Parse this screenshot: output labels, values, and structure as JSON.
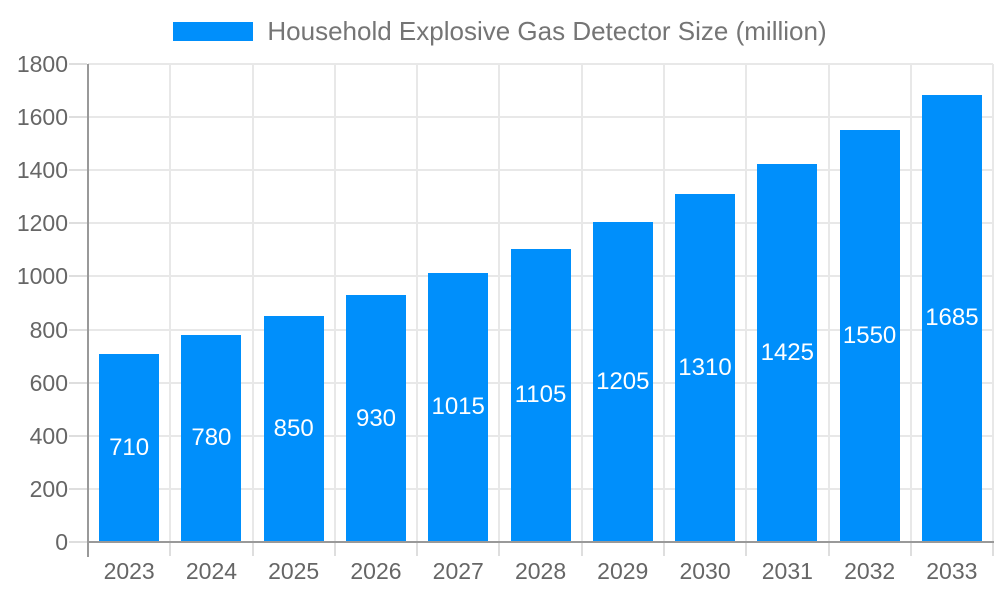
{
  "chart_data": {
    "type": "bar",
    "title": "Household Explosive Gas Detector Size (million)",
    "categories": [
      "2023",
      "2024",
      "2025",
      "2026",
      "2027",
      "2028",
      "2029",
      "2030",
      "2031",
      "2032",
      "2033"
    ],
    "series": [
      {
        "name": "Household Explosive Gas Detector Size (million)",
        "values": [
          710,
          780,
          850,
          930,
          1015,
          1105,
          1205,
          1310,
          1425,
          1550,
          1685
        ]
      }
    ],
    "xlabel": "",
    "ylabel": "",
    "ylim": [
      0,
      1800
    ],
    "y_ticks": [
      0,
      200,
      400,
      600,
      800,
      1000,
      1200,
      1400,
      1600,
      1800
    ],
    "grid": true,
    "legend_position": "top",
    "data_labels": "inside-center"
  },
  "style": {
    "bar_color": "#008ffb",
    "bar_label_color": "#ffffff",
    "axis_line_color": "#999999",
    "grid_line_color": "#e8e8e8",
    "tick_color": "#dedede",
    "axis_text_color": "#666666",
    "legend_text_color": "#757575",
    "background": "#ffffff"
  }
}
